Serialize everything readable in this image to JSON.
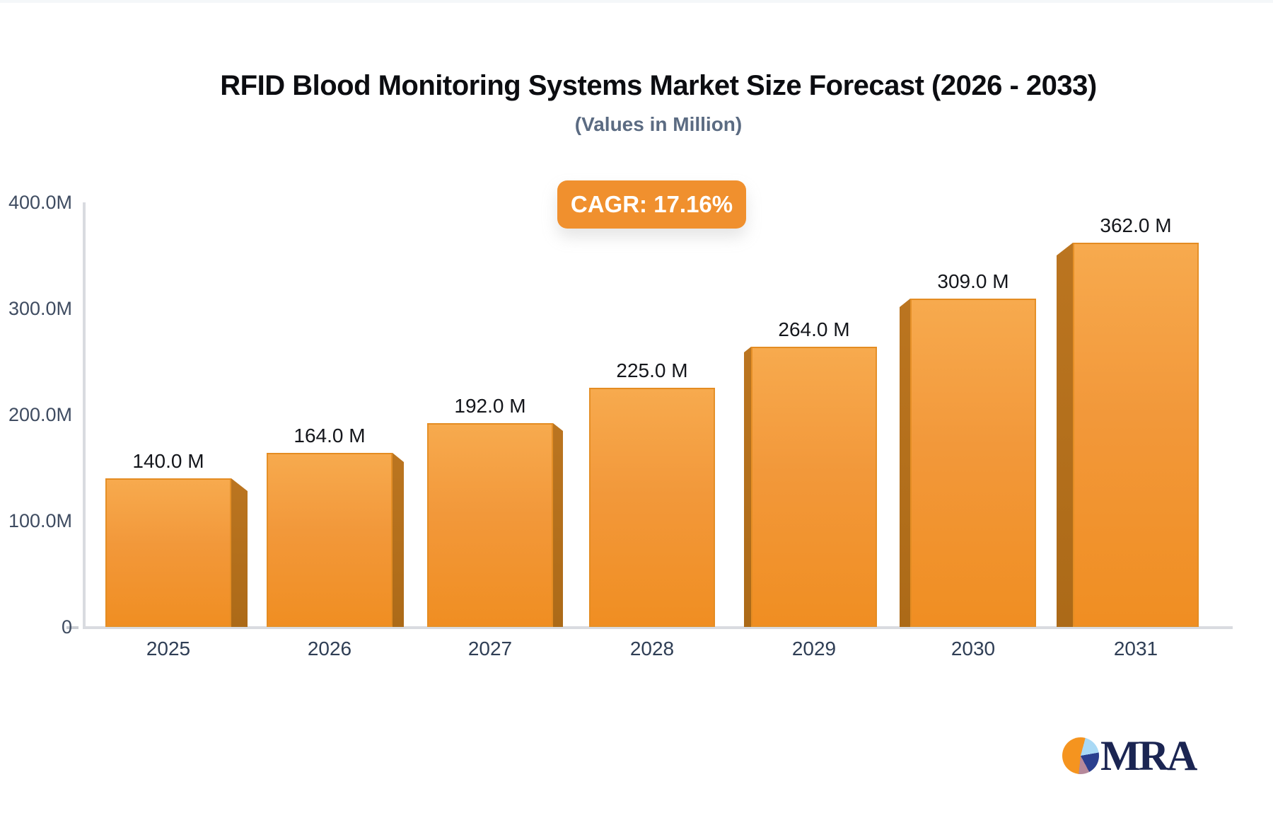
{
  "page": {
    "background": "#ffffff"
  },
  "header": {
    "title": "RFID Blood Monitoring Systems Market Size Forecast (2026 - 2033)",
    "subtitle": "(Values in Million)"
  },
  "badge": {
    "label": "CAGR: 17.16%",
    "color": "#F0902E",
    "text_color": "#FFFFFF"
  },
  "chart_data": {
    "type": "bar",
    "title": "RFID Blood Monitoring Systems Market Size Forecast (2026 - 2033)",
    "subtitle": "(Values in Million)",
    "xlabel": "",
    "ylabel": "",
    "categories": [
      "2025",
      "2026",
      "2027",
      "2028",
      "2029",
      "2030",
      "2031"
    ],
    "values": [
      140.0,
      164.0,
      192.0,
      225.0,
      264.0,
      309.0,
      362.0
    ],
    "value_labels": [
      "140.0 M",
      "164.0 M",
      "192.0 M",
      "225.0 M",
      "264.0 M",
      "309.0 M",
      "362.0 M"
    ],
    "unit": "Million",
    "cagr": "17.16%",
    "ylim": [
      0,
      400
    ],
    "y_ticks": [
      {
        "label": "400.0M",
        "value": 400
      },
      {
        "label": "300.0M",
        "value": 300
      },
      {
        "label": "200.0M",
        "value": 200
      },
      {
        "label": "100.0M",
        "value": 100
      },
      {
        "label": "0",
        "value": 0
      }
    ],
    "grid": false,
    "legend": null,
    "style": "3d-perspective-columns",
    "bar_color_top": "#F7AA4E",
    "bar_color_bottom": "#F08E22",
    "bar_side_color": "#B4701C",
    "axis_color": "#D9DBE0"
  },
  "footer": {
    "logo_text": "MRA",
    "logo_icon": "pie-chart-logo-icon",
    "logo_colors": [
      "#F5941F",
      "#A9D9F5",
      "#2A3F8F",
      "#B5889A"
    ]
  }
}
